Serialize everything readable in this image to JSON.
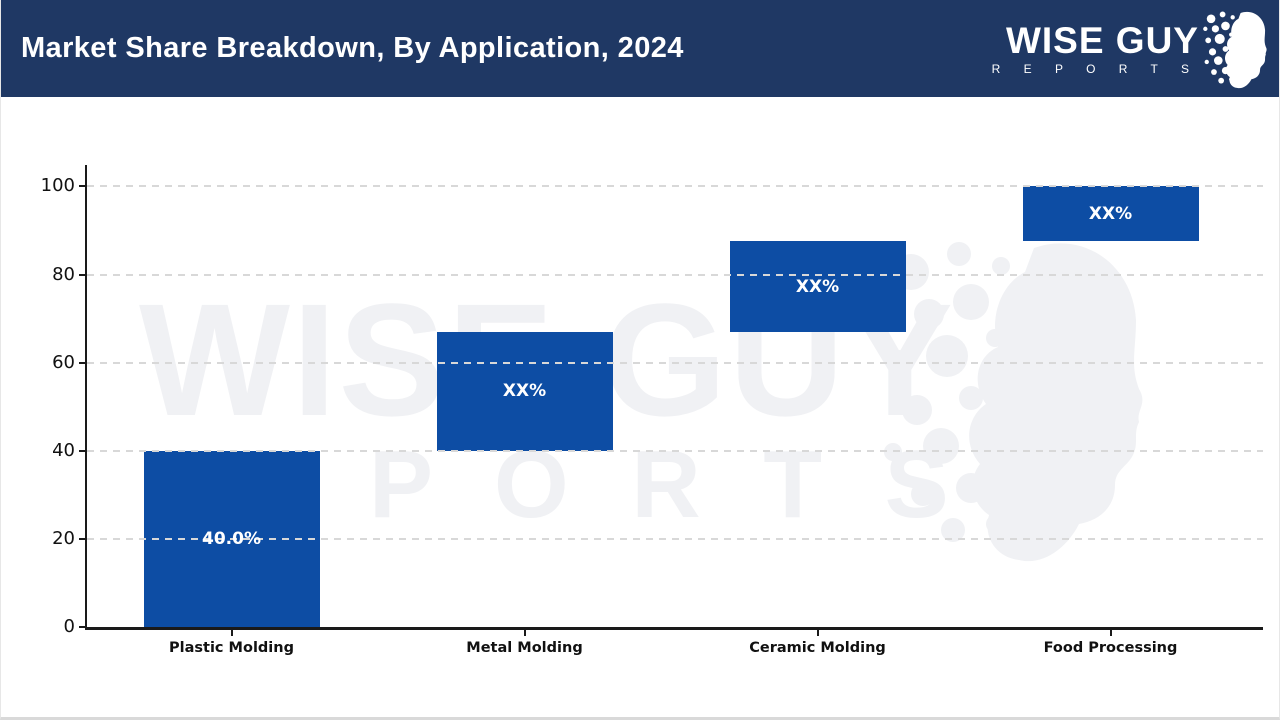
{
  "header": {
    "title": "Market Share Breakdown, By Application, 2024",
    "logo": {
      "line1": "WISE GUY",
      "line2": "R E P O R T S"
    }
  },
  "watermark": {
    "line1": "WISE GUY",
    "line2": "P O R T S"
  },
  "colors": {
    "header_bg": "#1f3864",
    "bar": "#0d4da4",
    "grid": "#d8d8d8",
    "axis": "#1a1a1a",
    "watermark": "#f0f1f4",
    "bar_label": "#ffffff",
    "logo_fill": "#ffffff"
  },
  "chart_data": {
    "type": "bar",
    "subtype": "waterfall",
    "title": "Market Share Breakdown, By Application, 2024",
    "categories": [
      "Plastic Molding",
      "Metal Molding",
      "Ceramic Molding",
      "Food Processing"
    ],
    "segments": [
      {
        "category": "Plastic Molding",
        "start": 0,
        "end": 40,
        "label": "40.0%"
      },
      {
        "category": "Metal Molding",
        "start": 40,
        "end": 67,
        "label": "XX%"
      },
      {
        "category": "Ceramic Molding",
        "start": 67,
        "end": 87.5,
        "label": "XX%"
      },
      {
        "category": "Food Processing",
        "start": 87.5,
        "end": 100,
        "label": "XX%"
      }
    ],
    "yticks": [
      0,
      20,
      40,
      60,
      80,
      100
    ],
    "ylim": [
      0,
      105
    ],
    "xlabel": "",
    "ylabel": "",
    "grid": "horizontal-dashed",
    "legend": "none"
  }
}
